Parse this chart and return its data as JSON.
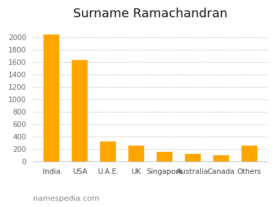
{
  "title": "Surname Ramachandran",
  "categories": [
    "India",
    "USA",
    "U.A.E.",
    "UK",
    "Singapore",
    "Australia",
    "Canada",
    "Others"
  ],
  "values": [
    2050,
    1630,
    325,
    260,
    155,
    120,
    95,
    255
  ],
  "bar_color": "#FFA500",
  "ylim": [
    0,
    2200
  ],
  "yticks": [
    0,
    200,
    400,
    600,
    800,
    1000,
    1200,
    1400,
    1600,
    1800,
    2000
  ],
  "grid_color": "#cccccc",
  "background_color": "#ffffff",
  "title_fontsize": 13,
  "tick_fontsize": 7.5,
  "footer_text": "namespedia.com",
  "footer_fontsize": 8,
  "footer_color": "#888888"
}
